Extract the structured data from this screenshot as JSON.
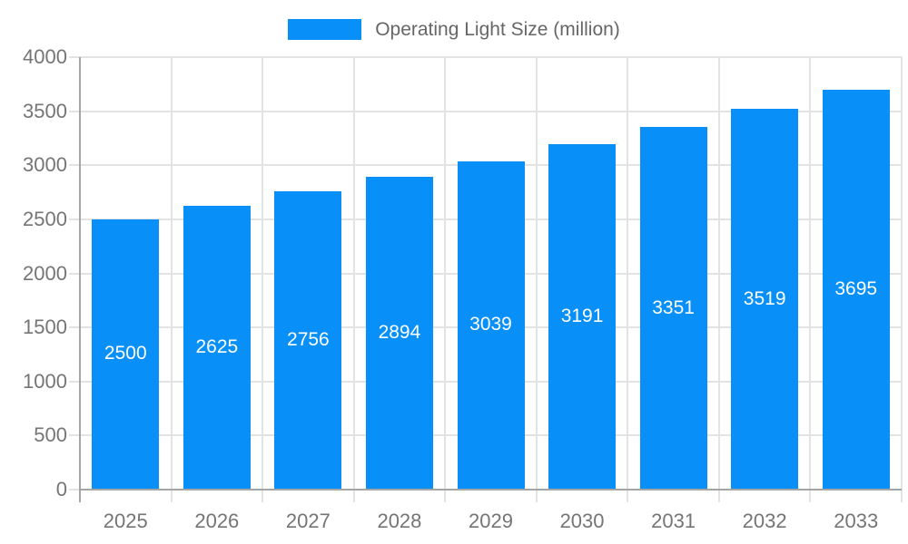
{
  "legend": {
    "label": "Operating Light Size (million)"
  },
  "chart_data": {
    "type": "bar",
    "title": "Operating Light Size (million)",
    "categories": [
      "2025",
      "2026",
      "2027",
      "2028",
      "2029",
      "2030",
      "2031",
      "2032",
      "2033"
    ],
    "series": [
      {
        "name": "Operating Light Size (million)",
        "values": [
          2500,
          2625,
          2756,
          2894,
          3039,
          3191,
          3351,
          3519,
          3695
        ]
      }
    ],
    "xlabel": "",
    "ylabel": "",
    "ylim": [
      0,
      4000
    ],
    "ytick_step": 500,
    "yticks": [
      0,
      500,
      1000,
      1500,
      2000,
      2500,
      3000,
      3500,
      4000
    ],
    "grid": true,
    "legend_position": "top",
    "bar_color": "#0890f8",
    "bar_label_color": "#ffffff",
    "axis_text_color": "#757575",
    "legend_text_color": "#666666"
  }
}
